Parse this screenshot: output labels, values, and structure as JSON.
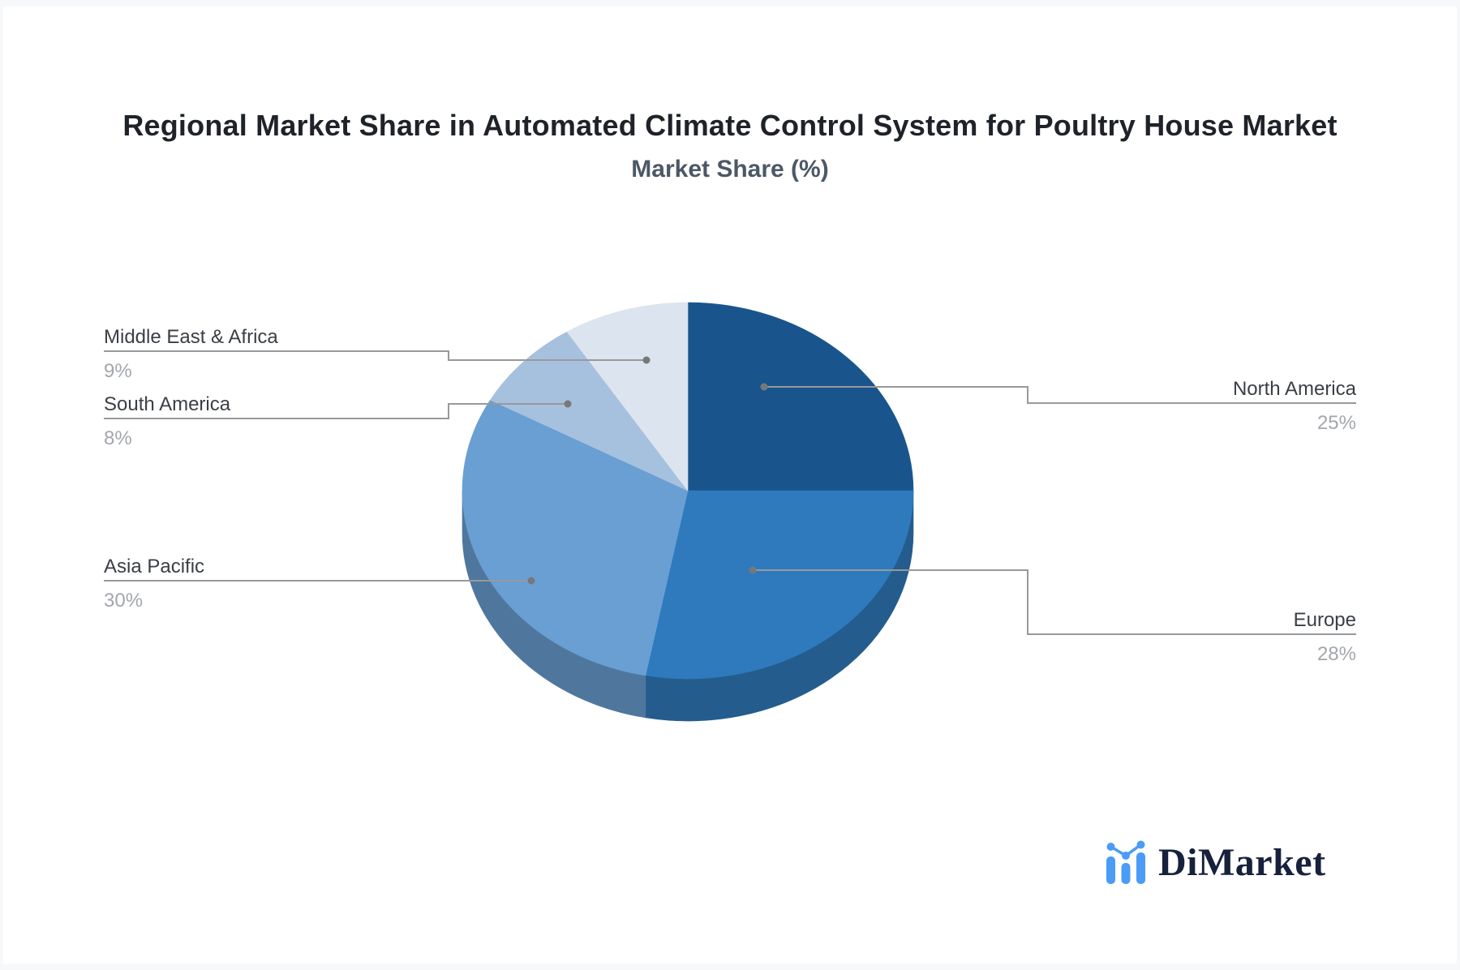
{
  "page": {
    "background_color": "#f7f8fa",
    "card_color": "#ffffff"
  },
  "chart_data": {
    "type": "pie",
    "style": "3d-pie",
    "title": "Regional Market Share in Automated Climate Control System for Poultry House Market",
    "subtitle": "Market Share (%)",
    "unit": "%",
    "legend": "none",
    "labels_shown_as": "callouts-with-leader-lines",
    "start_angle": "12 o'clock, clockwise",
    "leader_line_color": "#98999b",
    "segments": [
      {
        "label": "North America",
        "value": 25,
        "value_display": "25%",
        "color": "#19558C",
        "callout_side": "right"
      },
      {
        "label": "Europe",
        "value": 28,
        "value_display": "28%",
        "color": "#2E7ABC",
        "callout_side": "right"
      },
      {
        "label": "Asia Pacific",
        "value": 30,
        "value_display": "30%",
        "color": "#699FD2",
        "callout_side": "left"
      },
      {
        "label": "South America",
        "value": 8,
        "value_display": "8%",
        "color": "#A6C1DE",
        "callout_side": "left"
      },
      {
        "label": "Middle East & Africa",
        "value": 9,
        "value_display": "9%",
        "color": "#DCE4EF",
        "callout_side": "left"
      }
    ]
  },
  "branding": {
    "logo_text": "DiMarket",
    "logo_text_color": "#16213C",
    "icon_color": "#4A9CF6"
  }
}
